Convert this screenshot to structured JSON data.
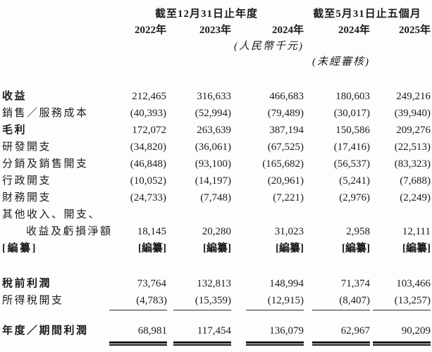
{
  "header": {
    "group_annual": "截至12月31日止年度",
    "group_five_months": "截至5月31日止五個月",
    "years": [
      "2022年",
      "2023年",
      "2024年",
      "2024年",
      "2025年"
    ],
    "currency_note": "(人民幣千元)",
    "unaudited_note": "(未經審核)"
  },
  "rows": [
    {
      "label": "收益",
      "values": [
        "212,465",
        "316,633",
        "466,683",
        "180,603",
        "249,216"
      ]
    },
    {
      "label": "銷售／服務成本",
      "values": [
        "(40,393)",
        "(52,994)",
        "(79,489)",
        "(30,017)",
        "(39,940)"
      ]
    },
    {
      "label": "毛利",
      "values": [
        "172,072",
        "263,639",
        "387,194",
        "150,586",
        "209,276"
      ]
    },
    {
      "label": "研發開支",
      "values": [
        "(34,820)",
        "(36,061)",
        "(67,525)",
        "(17,416)",
        "(22,513)"
      ]
    },
    {
      "label": "分銷及銷售開支",
      "values": [
        "(46,848)",
        "(93,100)",
        "(165,682)",
        "(56,537)",
        "(83,323)"
      ]
    },
    {
      "label": "行政開支",
      "values": [
        "(10,052)",
        "(14,197)",
        "(20,961)",
        "(5,241)",
        "(7,688)"
      ]
    },
    {
      "label": "財務開支",
      "values": [
        "(24,733)",
        "(7,748)",
        "(7,221)",
        "(2,976)",
        "(2,249)"
      ]
    },
    {
      "label": "其他收入、開支、",
      "values": [
        "",
        "",
        "",
        "",
        ""
      ]
    },
    {
      "label": "收益及虧損淨額",
      "values": [
        "18,145",
        "20,280",
        "31,023",
        "2,958",
        "12,111"
      ]
    },
    {
      "label": "[編纂]",
      "values": [
        "[編纂]",
        "[編纂]",
        "[編纂]",
        "[編纂]",
        "[編纂]"
      ]
    },
    {
      "label": "稅前利潤",
      "values": [
        "73,764",
        "132,813",
        "148,994",
        "71,374",
        "103,466"
      ]
    },
    {
      "label": "所得稅開支",
      "values": [
        "(4,783)",
        "(15,359)",
        "(12,915)",
        "(8,407)",
        "(13,257)"
      ]
    },
    {
      "label": "年度／期間利潤",
      "values": [
        "68,981",
        "117,454",
        "136,079",
        "62,967",
        "90,209"
      ]
    }
  ]
}
